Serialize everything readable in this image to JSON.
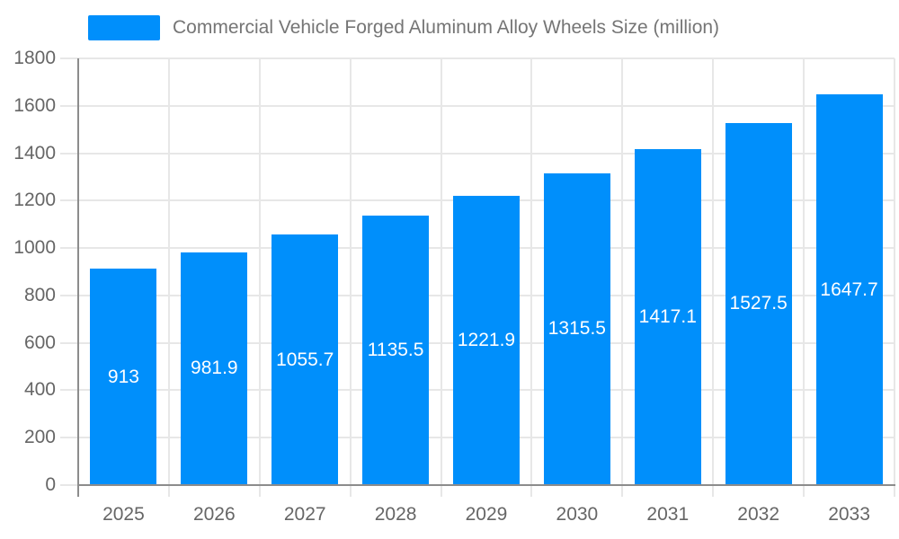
{
  "chart_data": {
    "type": "bar",
    "title": "Commercial Vehicle Forged Aluminum Alloy Wheels Size (million)",
    "categories": [
      "2025",
      "2026",
      "2027",
      "2028",
      "2029",
      "2030",
      "2031",
      "2032",
      "2033"
    ],
    "series": [
      {
        "name": "Commercial Vehicle Forged Aluminum Alloy Wheels Size (million)",
        "values": [
          913,
          981.9,
          1055.7,
          1135.5,
          1221.9,
          1315.5,
          1417.1,
          1527.5,
          1647.7
        ]
      }
    ],
    "data_labels": [
      "913",
      "981.9",
      "1055.7",
      "1135.5",
      "1221.9",
      "1315.5",
      "1417.1",
      "1527.5",
      "1647.7"
    ],
    "xlabel": "",
    "ylabel": "",
    "ylim": [
      0,
      1800
    ],
    "ytick_step": 200,
    "ytick_labels": [
      "0",
      "200",
      "400",
      "600",
      "800",
      "1000",
      "1200",
      "1400",
      "1600",
      "1800"
    ],
    "grid": true,
    "legend_position": "top",
    "colors": {
      "bar": "#008FFB",
      "grid": "#e7e7e7",
      "axis": "#8c8c8c",
      "tick_label": "#666666",
      "legend_text": "#757575",
      "value_label": "#ffffff",
      "background": "#ffffff"
    }
  }
}
